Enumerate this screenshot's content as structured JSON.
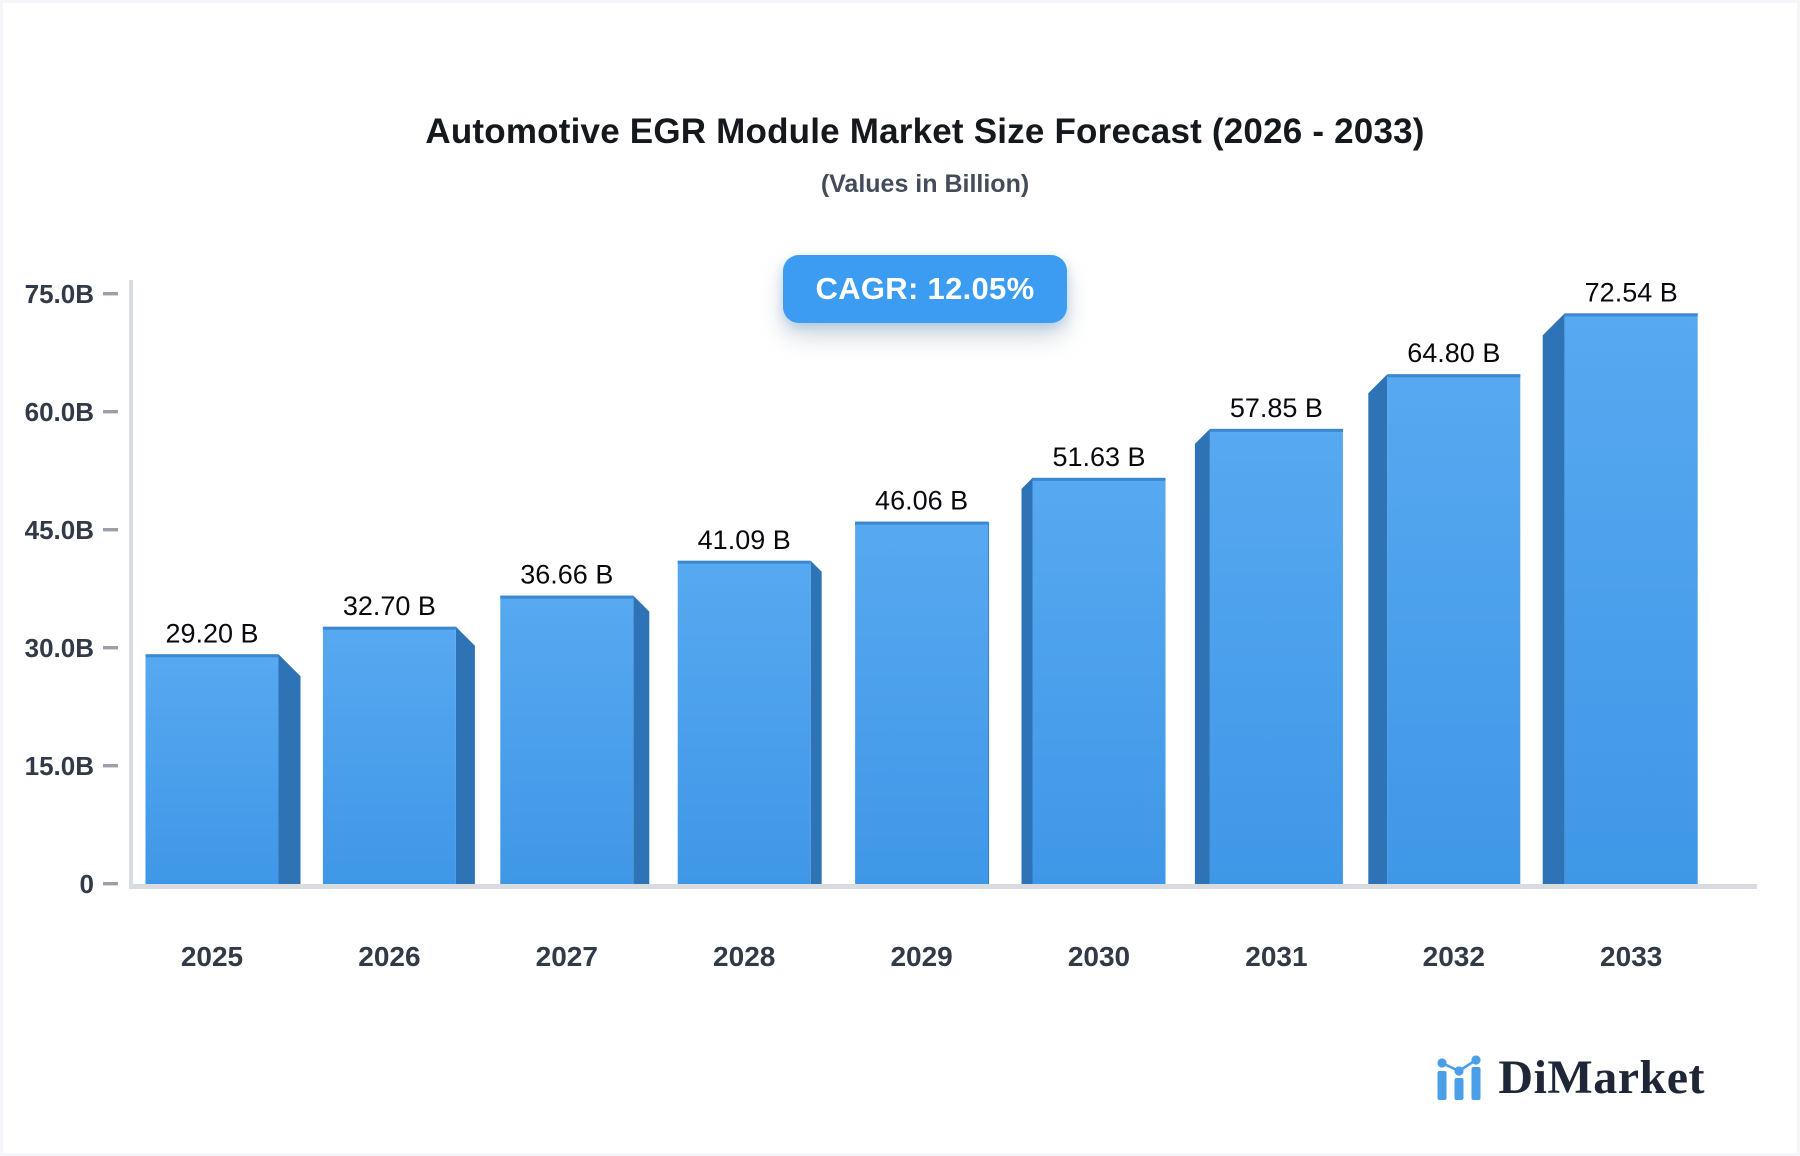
{
  "header": {
    "title": "Automotive EGR Module Market Size Forecast (2026 - 2033)",
    "subtitle": "(Values in Billion)",
    "cagr_label": "CAGR: 12.05%"
  },
  "chart_data": {
    "type": "bar",
    "title": "Automotive EGR Module Market Size Forecast (2026 - 2033)",
    "subtitle": "(Values in Billion)",
    "annotation": "CAGR: 12.05%",
    "categories": [
      "2025",
      "2026",
      "2027",
      "2028",
      "2029",
      "2030",
      "2031",
      "2032",
      "2033"
    ],
    "values": [
      29.2,
      32.7,
      36.66,
      41.09,
      46.06,
      51.63,
      57.85,
      64.8,
      72.54
    ],
    "value_labels": [
      "29.20 B",
      "32.70 B",
      "36.66 B",
      "41.09 B",
      "46.06 B",
      "51.63 B",
      "57.85 B",
      "64.80 B",
      "72.54 B"
    ],
    "yticks": [
      {
        "value": 0,
        "label": "0"
      },
      {
        "value": 15,
        "label": "15.0B"
      },
      {
        "value": 30,
        "label": "30.0B"
      },
      {
        "value": 45,
        "label": "45.0B"
      },
      {
        "value": 60,
        "label": "60.0B"
      },
      {
        "value": 75,
        "label": "75.0B"
      }
    ],
    "ylim": [
      0,
      75
    ],
    "xlabel": "",
    "ylabel": "",
    "grid": false,
    "legend": false,
    "colors": {
      "bar_face_top": "#57a9f0",
      "bar_face_bottom": "#3f97e7",
      "bar_side": "#2d73b5",
      "bar_top_edge": "#3c88d0",
      "annotation_bg": "#3b9cf2",
      "axis_line": "#d8dbe0",
      "tick_dash": "#99a0a9",
      "axis_text": "#323a47",
      "value_text": "#07090d"
    }
  },
  "logo": {
    "text": "DiMarket",
    "icon": "bar-chart-icon",
    "text_color": "#1e2638",
    "accent_color": "#4a9fe8"
  }
}
